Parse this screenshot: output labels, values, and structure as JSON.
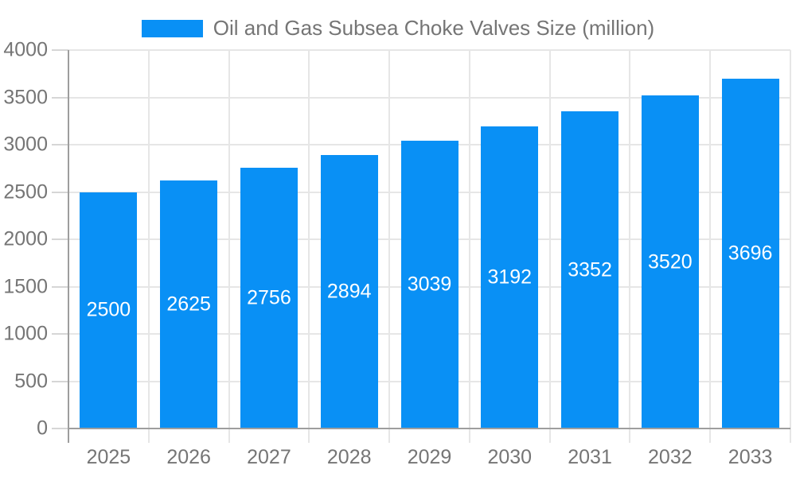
{
  "chart_data": {
    "type": "bar",
    "title": "Oil and Gas Subsea Choke Valves Size (million)",
    "legend_position": "top",
    "categories": [
      "2025",
      "2026",
      "2027",
      "2028",
      "2029",
      "2030",
      "2031",
      "2032",
      "2033"
    ],
    "series": [
      {
        "name": "Oil and Gas Subsea Choke Valves Size (million)",
        "values": [
          2500,
          2625,
          2756,
          2894,
          3039,
          3192,
          3352,
          3520,
          3696
        ]
      }
    ],
    "xlabel": "",
    "ylabel": "",
    "ylim": [
      0,
      4000
    ],
    "yticks": [
      0,
      500,
      1000,
      1500,
      2000,
      2500,
      3000,
      3500,
      4000
    ],
    "grid": true,
    "colors": {
      "bar": "#0990f5",
      "bar_label_text": "#ffffff",
      "axis_text": "#757575",
      "grid_line": "#e6e6e6",
      "tick_line": "#d6d6d6",
      "axis_line": "#9e9e9e"
    }
  }
}
